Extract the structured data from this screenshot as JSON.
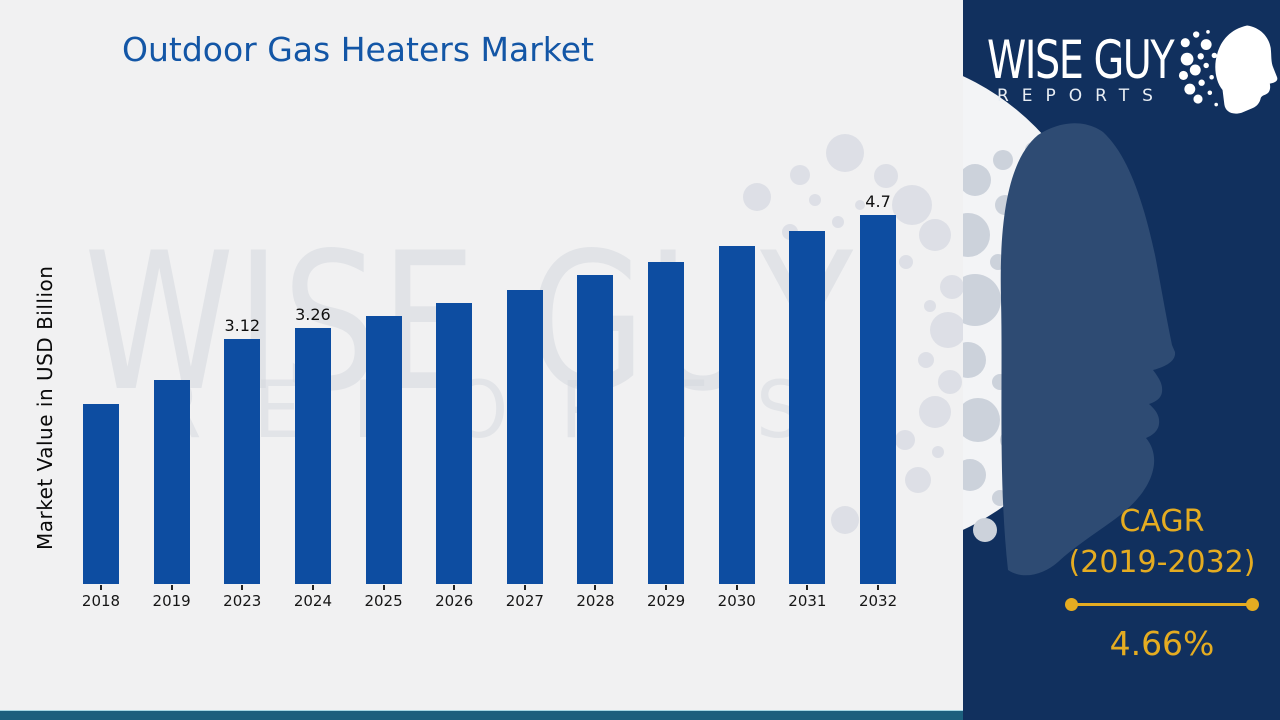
{
  "title": "Outdoor Gas Heaters Market",
  "brand": {
    "name": "WISE GUY",
    "sub": "REPORTS"
  },
  "watermark": {
    "line1": "WISE GUY",
    "line2": "REPORTS"
  },
  "cagr": {
    "heading": "CAGR",
    "range": "(2019-2032)",
    "value": "4.66%"
  },
  "chart_data": {
    "type": "bar",
    "title": "Outdoor Gas Heaters Market",
    "xlabel": "",
    "ylabel": "Market Value in USD Billion",
    "categories": [
      "2018",
      "2019",
      "2023",
      "2024",
      "2025",
      "2026",
      "2027",
      "2028",
      "2029",
      "2030",
      "2031",
      "2032"
    ],
    "values": [
      2.29,
      2.6,
      3.12,
      3.26,
      3.41,
      3.58,
      3.75,
      3.93,
      4.1,
      4.3,
      4.5,
      4.7
    ],
    "data_labels": [
      "",
      "",
      "3.12",
      "3.26",
      "",
      "",
      "",
      "",
      "",
      "",
      "",
      "4.7"
    ],
    "ylim": [
      0,
      5
    ],
    "grid": false,
    "legend": null,
    "bar_color": "#0d4da1"
  },
  "colors": {
    "background": "#f1f1f2",
    "bar": "#0d4da1",
    "title": "#1356a6",
    "panel": "#11305e",
    "silhouette": "#2e4b73",
    "gold": "#e5ac21",
    "teal": "#1c5f7d"
  }
}
